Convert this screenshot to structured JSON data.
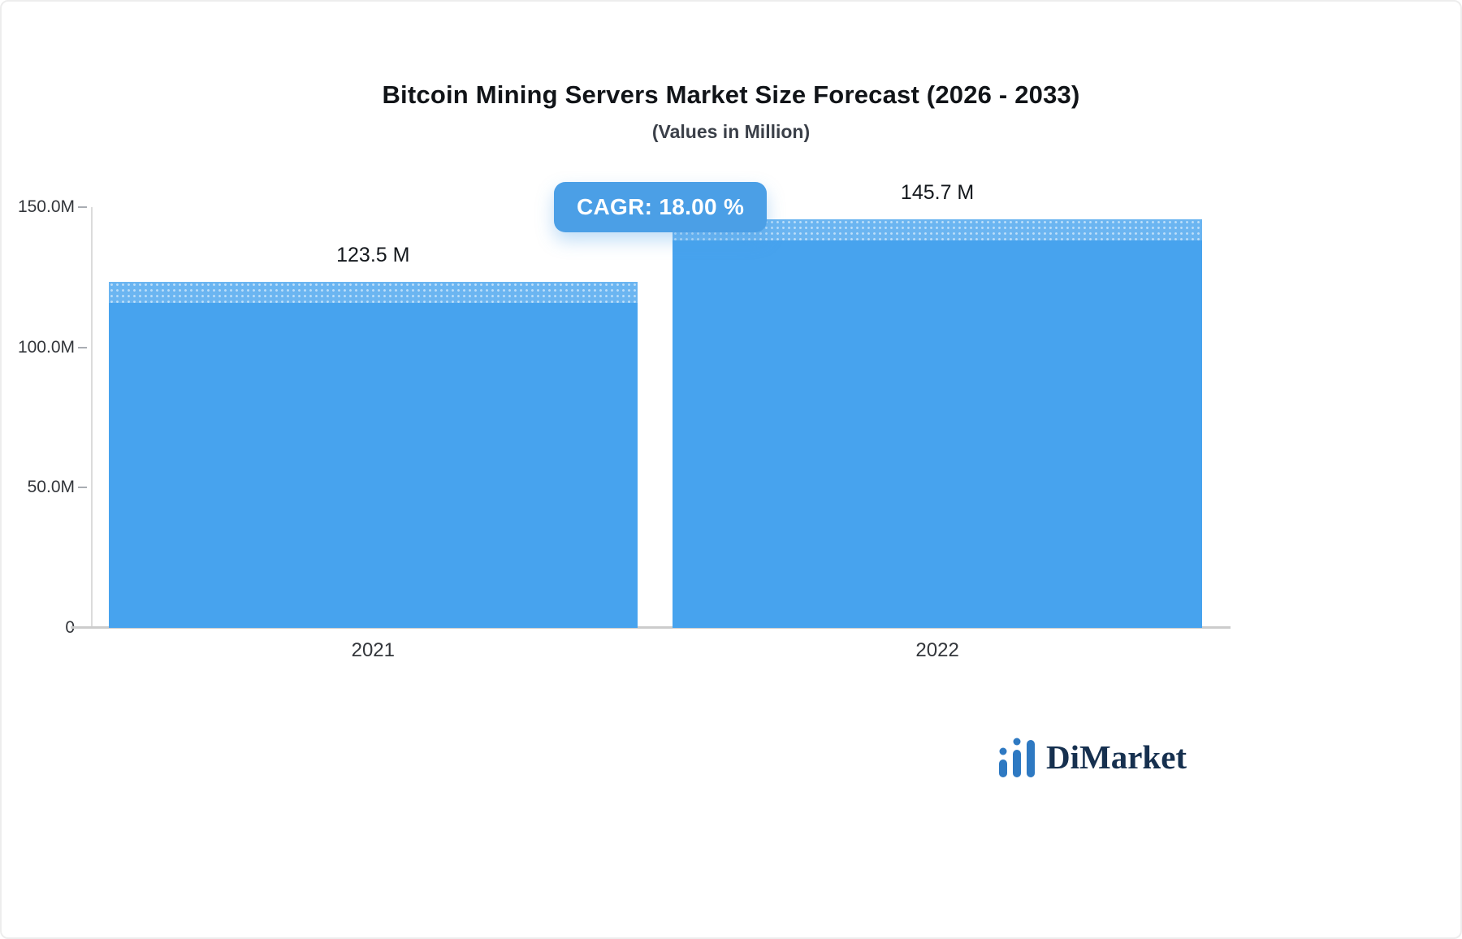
{
  "chart_data": {
    "type": "bar",
    "title": "Bitcoin Mining Servers Market Size Forecast (2026 - 2033)",
    "subtitle": "(Values in Million)",
    "categories": [
      "2021",
      "2022"
    ],
    "values": [
      123.5,
      145.7
    ],
    "value_labels": [
      "123.5 M",
      "145.7 M"
    ],
    "annotation": "CAGR: 18.00 %",
    "unit": "Million",
    "ylim": [
      0,
      150
    ],
    "y_ticks": [
      {
        "value": 150,
        "label": "150.0M"
      },
      {
        "value": 100,
        "label": "100.0M"
      },
      {
        "value": 50,
        "label": "50.0M"
      },
      {
        "value": 0,
        "label": "0"
      }
    ],
    "bar_color": "#47a3ee",
    "grid": false,
    "legend": false
  },
  "colors": {
    "bar": "#47a3ee",
    "badge": "#4b9fe6",
    "logo_icon": "#2e79c2",
    "logo_text": "#16304f"
  },
  "branding": {
    "logo_text": "DiMarket"
  }
}
